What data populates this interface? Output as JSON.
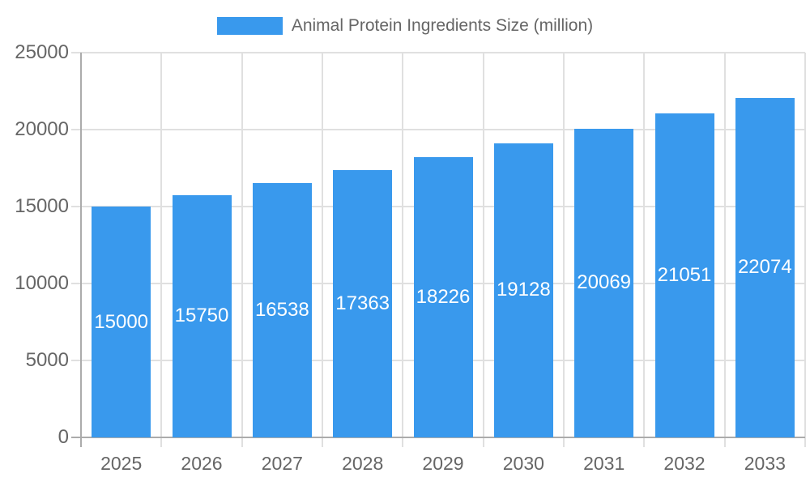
{
  "chart_data": {
    "type": "bar",
    "title": "Animal Protein Ingredients Size (million)",
    "categories": [
      "2025",
      "2026",
      "2027",
      "2028",
      "2029",
      "2030",
      "2031",
      "2032",
      "2033"
    ],
    "values": [
      15000,
      15750,
      16538,
      17363,
      18226,
      19128,
      20069,
      21051,
      22074
    ],
    "bar_value_labels": [
      "15000",
      "15750",
      "16538",
      "17363",
      "18226",
      "19128",
      "20069",
      "21051",
      "22074"
    ],
    "xlabel": "",
    "ylabel": "",
    "ylim": [
      0,
      25000
    ],
    "yticks": [
      0,
      5000,
      10000,
      15000,
      20000,
      25000
    ],
    "ytick_labels": [
      "0",
      "5000",
      "10000",
      "15000",
      "20000",
      "25000"
    ],
    "grid": true,
    "legend_position": "top-center",
    "colors": {
      "bar": "#3999ED",
      "bar_value_text": "#ffffff",
      "axis_text": "#666666",
      "legend_text": "#666666",
      "gridline": "#E0E0E0",
      "axis_line": "#ABABAB",
      "background": "#ffffff"
    }
  }
}
